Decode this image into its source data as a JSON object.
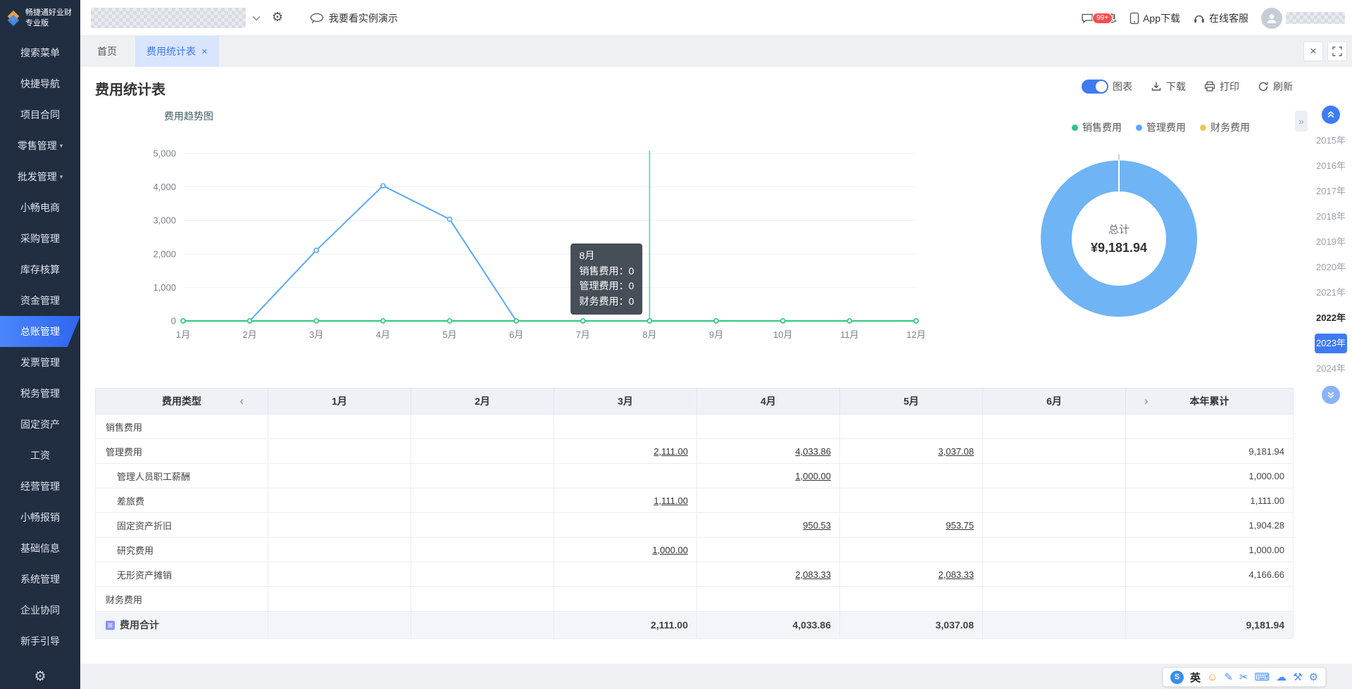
{
  "colors": {
    "accent": "#3e7bf2",
    "sidebar_bg": "#212e42",
    "tab_active_bg": "#d8e5fd",
    "badge_red": "#fa4e4e"
  },
  "topbar": {
    "logo_line1": "畅捷通好业财",
    "logo_line2": "专业版",
    "demo_label": "我要看实例演示",
    "messages": {
      "label": "消息",
      "badge": "99+"
    },
    "app_download": "App下载",
    "support": "在线客服"
  },
  "tabs": {
    "items": [
      {
        "label": "首页"
      },
      {
        "label": "费用统计表"
      }
    ]
  },
  "page": {
    "title": "费用统计表",
    "toolbar": {
      "chart_toggle_label": "图表",
      "download": "下载",
      "print": "打印",
      "refresh": "刷新"
    }
  },
  "sidebar": {
    "items": [
      {
        "label": "搜索菜单"
      },
      {
        "label": "快捷导航"
      },
      {
        "label": "项目合同"
      },
      {
        "label": "零售管理",
        "arrow": true
      },
      {
        "label": "批发管理",
        "arrow": true
      },
      {
        "label": "小畅电商"
      },
      {
        "label": "采购管理"
      },
      {
        "label": "库存核算"
      },
      {
        "label": "资金管理"
      },
      {
        "label": "总账管理",
        "active": true
      },
      {
        "label": "发票管理"
      },
      {
        "label": "税务管理"
      },
      {
        "label": "固定资产"
      },
      {
        "label": "工资"
      },
      {
        "label": "经营管理"
      },
      {
        "label": "小畅报销"
      },
      {
        "label": "基础信息"
      },
      {
        "label": "系统管理"
      },
      {
        "label": "企业协同"
      },
      {
        "label": "新手引导"
      }
    ]
  },
  "chart_data": [
    {
      "type": "line",
      "title": "费用趋势图",
      "x": [
        "1月",
        "2月",
        "3月",
        "4月",
        "5月",
        "6月",
        "7月",
        "8月",
        "9月",
        "10月",
        "11月",
        "12月"
      ],
      "series": [
        {
          "name": "销售费用",
          "color": "#2ec77f",
          "values": [
            0,
            0,
            0,
            0,
            0,
            0,
            0,
            0,
            0,
            0,
            0,
            0
          ]
        },
        {
          "name": "管理费用",
          "color": "#5ba8f7",
          "values": [
            0,
            0,
            2111.0,
            4033.86,
            3037.08,
            0,
            0,
            0,
            0,
            0,
            0,
            0
          ]
        },
        {
          "name": "财务费用",
          "color": "#e9c75f",
          "values": [
            0,
            0,
            0,
            0,
            0,
            0,
            0,
            0,
            0,
            0,
            0,
            0
          ]
        }
      ],
      "ylim": [
        0,
        5000
      ],
      "yticks": [
        "0",
        "1,000",
        "2,000",
        "3,000",
        "4,000",
        "5,000"
      ],
      "grid": true,
      "legend_position": "top-right",
      "tooltip": {
        "title": "8月",
        "lines": [
          "销售费用：0",
          "管理费用：0",
          "财务费用：0"
        ],
        "month_index": 7
      }
    },
    {
      "type": "pie",
      "center_label": "总计",
      "center_value": "¥9,181.94",
      "slices": [
        {
          "name": "管理费用",
          "value": 9181.94,
          "color": "#6fb4f4"
        }
      ]
    }
  ],
  "year_selector": {
    "years": [
      {
        "label": "2015年"
      },
      {
        "label": "2016年"
      },
      {
        "label": "2017年"
      },
      {
        "label": "2018年"
      },
      {
        "label": "2019年"
      },
      {
        "label": "2020年"
      },
      {
        "label": "2021年"
      },
      {
        "label": "2022年",
        "emphasis": true
      },
      {
        "label": "2023年",
        "selected": true
      },
      {
        "label": "2024年"
      }
    ]
  },
  "table": {
    "columns": [
      "费用类型",
      "1月",
      "2月",
      "3月",
      "4月",
      "5月",
      "6月",
      "本年累计"
    ],
    "rows": [
      {
        "name": "销售费用",
        "indent": false,
        "values": [
          "",
          "",
          "",
          "",
          "",
          "",
          ""
        ],
        "link_cols": []
      },
      {
        "name": "管理费用",
        "indent": false,
        "values": [
          "",
          "",
          "2,111.00",
          "4,033.86",
          "3,037.08",
          "",
          "9,181.94"
        ],
        "link_cols": [
          2,
          3,
          4
        ]
      },
      {
        "name": "管理人员职工薪酬",
        "indent": true,
        "values": [
          "",
          "",
          "",
          "1,000.00",
          "",
          "",
          "1,000.00"
        ],
        "link_cols": [
          3
        ]
      },
      {
        "name": "差旅费",
        "indent": true,
        "values": [
          "",
          "",
          "1,111.00",
          "",
          "",
          "",
          "1,111.00"
        ],
        "link_cols": [
          2
        ]
      },
      {
        "name": "固定资产折旧",
        "indent": true,
        "values": [
          "",
          "",
          "",
          "950.53",
          "953.75",
          "",
          "1,904.28"
        ],
        "link_cols": [
          3,
          4
        ]
      },
      {
        "name": "研究费用",
        "indent": true,
        "values": [
          "",
          "",
          "1,000.00",
          "",
          "",
          "",
          "1,000.00"
        ],
        "link_cols": [
          2
        ]
      },
      {
        "name": "无形资产摊销",
        "indent": true,
        "values": [
          "",
          "",
          "",
          "2,083.33",
          "2,083.33",
          "",
          "4,166.66"
        ],
        "link_cols": [
          3,
          4
        ]
      },
      {
        "name": "财务费用",
        "indent": false,
        "values": [
          "",
          "",
          "",
          "",
          "",
          "",
          ""
        ],
        "link_cols": []
      }
    ],
    "footer": {
      "name": "费用合计",
      "values": [
        "",
        "",
        "2,111.00",
        "4,033.86",
        "3,037.08",
        "",
        "9,181.94"
      ]
    }
  },
  "ime": {
    "logo": "S",
    "mode": "英",
    "icons": [
      "smiley",
      "pen",
      "scissors",
      "keyboard",
      "cloud",
      "tools",
      "gear"
    ]
  }
}
